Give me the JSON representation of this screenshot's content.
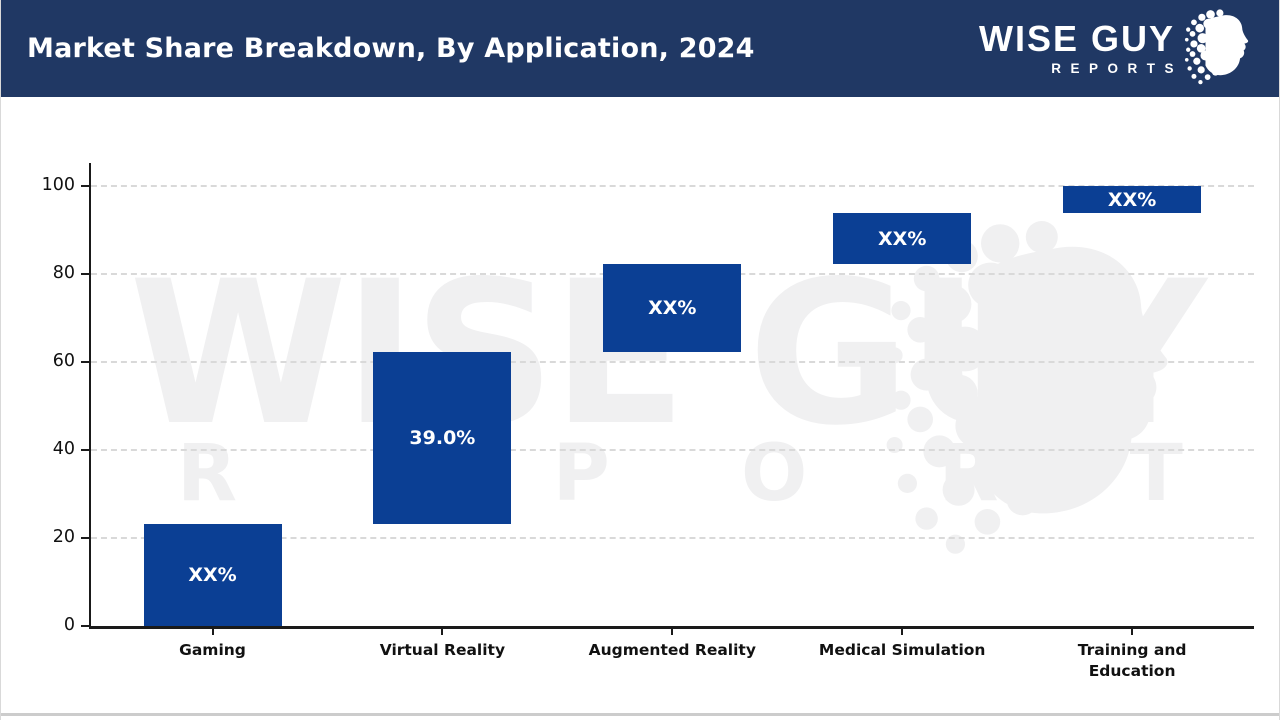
{
  "header": {
    "title": "Market Share Breakdown, By Application, 2024",
    "logo": {
      "line1": "WISE GUY",
      "line2": "REPORTS",
      "icon": "dotted-head-profile-icon"
    }
  },
  "watermark": {
    "line1": "WISE GUY",
    "line2": "R E P O R T S",
    "icon": "dotted-head-profile-icon"
  },
  "colors": {
    "header_bg": "#203864",
    "bar": "#0b3f94",
    "grid": "#d9d9d9",
    "axis": "#1a1a1a",
    "watermark": "#f0f0f1",
    "bar_label": "#ffffff",
    "bottom_rule": "#cccccc"
  },
  "chart_data": {
    "type": "bar",
    "subtype": "waterfall-cumulative",
    "title": "Market Share Breakdown, By Application, 2024",
    "categories": [
      "Gaming",
      "Virtual Reality",
      "Augmented Reality",
      "Medical Simulation",
      "Training and Education"
    ],
    "segments": [
      {
        "category": "Gaming",
        "label": "XX%",
        "start": 0,
        "end": 23.2
      },
      {
        "category": "Virtual Reality",
        "label": "39.0%",
        "start": 23.2,
        "end": 62.2
      },
      {
        "category": "Augmented Reality",
        "label": "XX%",
        "start": 62.2,
        "end": 82.2
      },
      {
        "category": "Medical Simulation",
        "label": "XX%",
        "start": 82.2,
        "end": 93.8
      },
      {
        "category": "Training and Education",
        "label": "XX%",
        "start": 93.8,
        "end": 100
      }
    ],
    "values_shown_as": "percent of market share, most values masked as XX%",
    "yticks": [
      0,
      20,
      40,
      60,
      80,
      100
    ],
    "ylim": [
      0,
      105
    ],
    "xlabel": "",
    "ylabel": "",
    "grid": "horizontal-dashed",
    "legend": "none"
  }
}
